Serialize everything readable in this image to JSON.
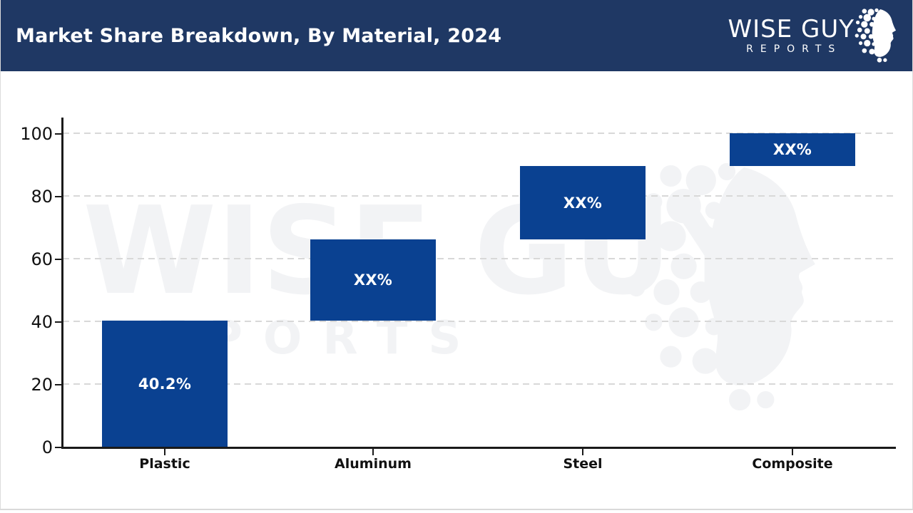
{
  "header": {
    "title": "Market Share Breakdown, By Material, 2024",
    "logo": {
      "wordmark": "WISE GUY",
      "sub": "REPORTS"
    }
  },
  "watermark": {
    "wordmark": "WISE GUY",
    "sub": "REPORTS"
  },
  "chart_data": {
    "type": "bar",
    "subtype": "waterfall",
    "title": "Market Share Breakdown, By Material, 2024",
    "categories": [
      "Plastic",
      "Aluminum",
      "Steel",
      "Composite"
    ],
    "segments": [
      {
        "category": "Plastic",
        "start": 0,
        "end": 40.2,
        "label": "40.2%",
        "estimated_value": 40.2
      },
      {
        "category": "Aluminum",
        "start": 40.2,
        "end": 66.1,
        "label": "XX%",
        "estimated_value": 25.9
      },
      {
        "category": "Steel",
        "start": 66.1,
        "end": 89.5,
        "label": "XX%",
        "estimated_value": 23.4
      },
      {
        "category": "Composite",
        "start": 89.5,
        "end": 100,
        "label": "XX%",
        "estimated_value": 10.5
      }
    ],
    "yticks": [
      0,
      20,
      40,
      60,
      80,
      100
    ],
    "ylim": [
      0,
      105
    ],
    "grid": {
      "horizontal": true,
      "style": "dashed"
    },
    "legend_position": "none"
  },
  "colors": {
    "header_bg": "#1f3864",
    "bar": "#0a4191",
    "bar_label": "#ffffff",
    "watermark": "#f2f3f5",
    "axis": "#1a1a1a",
    "grid": "#d8d8d8",
    "page_border": "#d9d9d9"
  }
}
